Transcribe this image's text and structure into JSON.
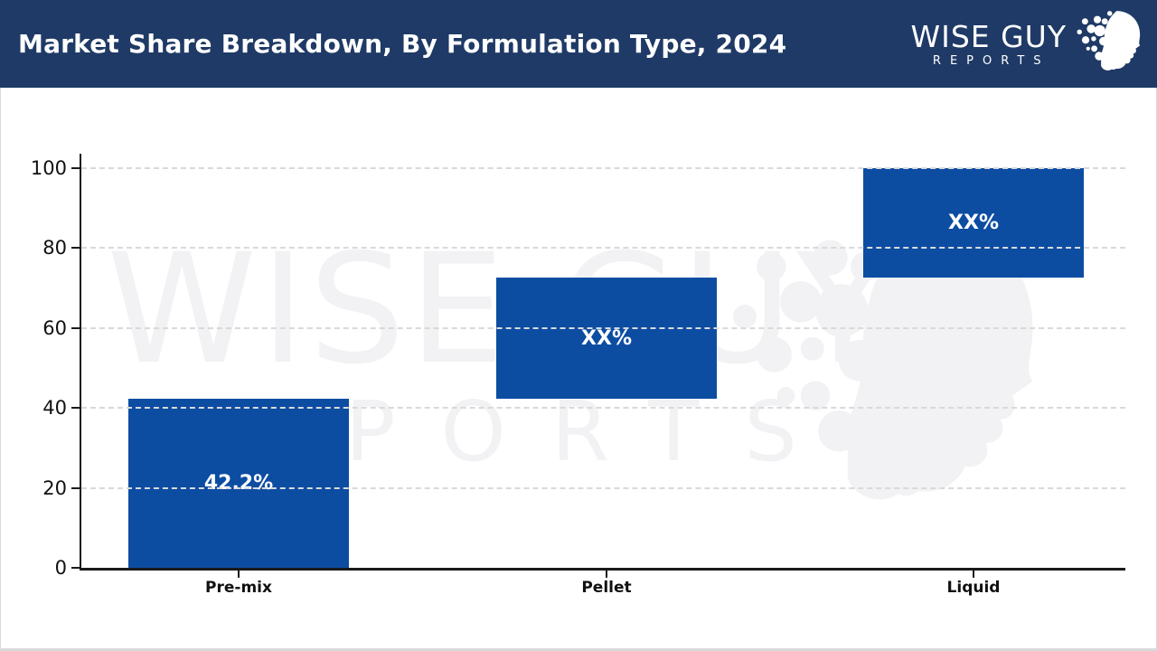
{
  "header": {
    "title": "Market Share Breakdown, By Formulation Type, 2024",
    "brand": {
      "name": "WISE GUY",
      "sub": "REPORTS"
    }
  },
  "watermark": {
    "line1": "WISE GUY",
    "line2": "REPORTS"
  },
  "chart_data": {
    "type": "bar",
    "variant": "stacked-waterfall-floating-bars",
    "title": "Market Share Breakdown, By Formulation Type, 2024",
    "categories": [
      "Pre-mix",
      "Pellet",
      "Liquid"
    ],
    "segments": [
      {
        "category": "Pre-mix",
        "start": 0,
        "end": 42.2,
        "label": "42.2%"
      },
      {
        "category": "Pellet",
        "start": 42.2,
        "end": 72.6,
        "label": "XX%"
      },
      {
        "category": "Liquid",
        "start": 72.6,
        "end": 100,
        "label": "XX%"
      }
    ],
    "yticks": [
      0,
      20,
      40,
      60,
      80,
      100
    ],
    "ylim": [
      0,
      100
    ],
    "xlabel": "",
    "ylabel": "",
    "grid": {
      "horizontal": true,
      "style": "dashed"
    },
    "legend": "none",
    "colors": {
      "bar": "#0c4da2",
      "grid": "#d9d9d9",
      "axis": "#1a1a1a",
      "header_bg": "#1f3a66",
      "bar_label_text": "#ffffff"
    }
  }
}
